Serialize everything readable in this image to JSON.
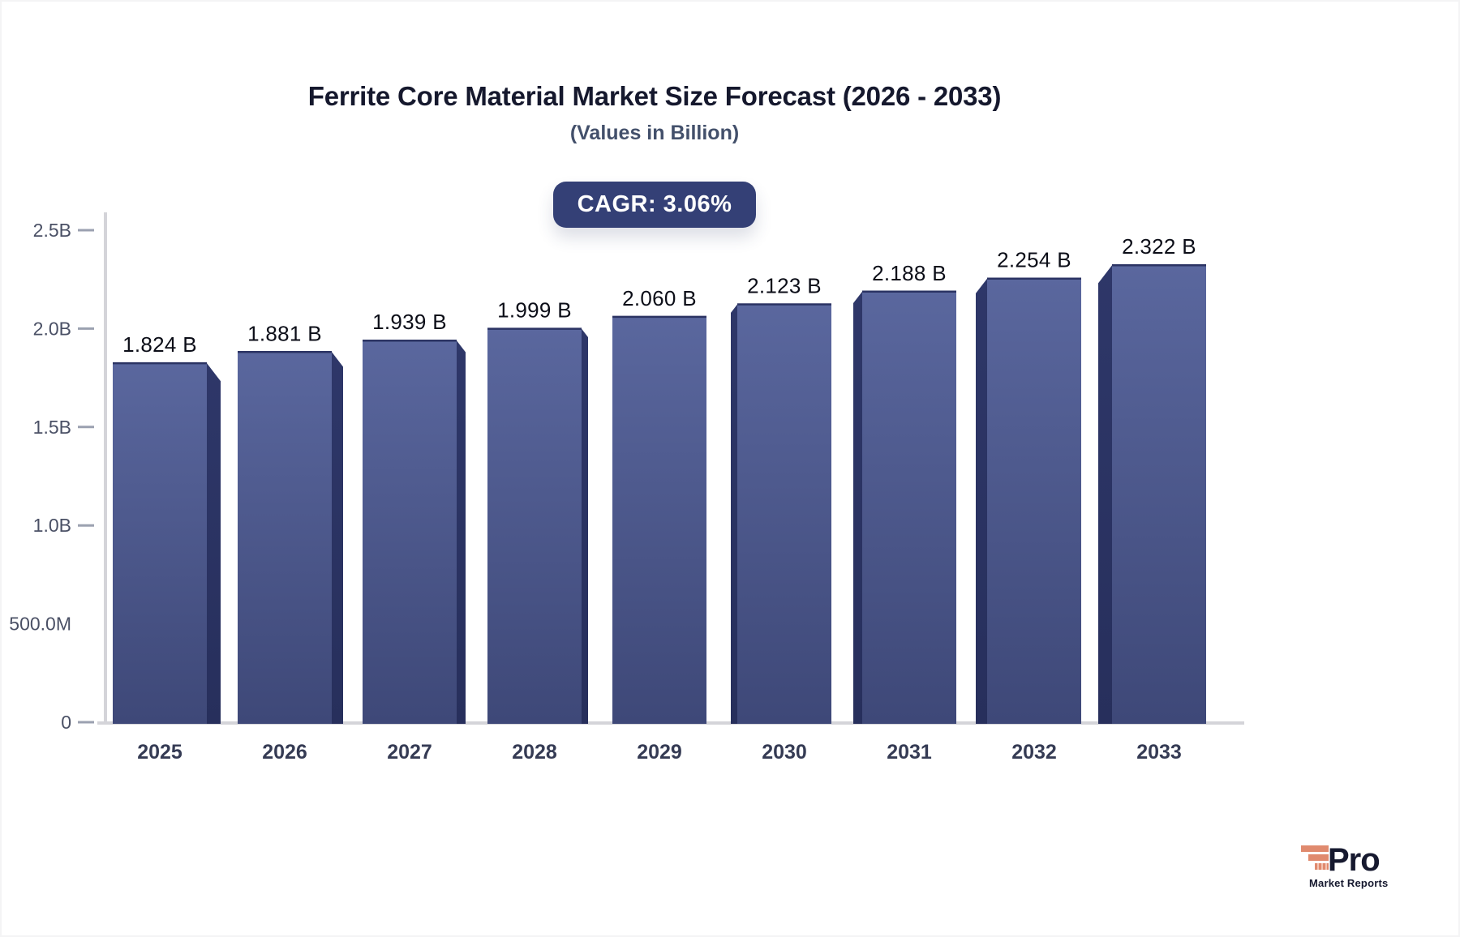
{
  "chart_data": {
    "type": "bar",
    "title": "Ferrite Core Material Market Size Forecast (2026 - 2033)",
    "subtitle": "(Values in Billion)",
    "annotation": "CAGR: 3.06%",
    "categories": [
      "2025",
      "2026",
      "2027",
      "2028",
      "2029",
      "2030",
      "2031",
      "2032",
      "2033"
    ],
    "values": [
      1.824,
      1.881,
      1.939,
      1.999,
      2.06,
      2.123,
      2.188,
      2.254,
      2.322
    ],
    "bar_labels": [
      "1.824 B",
      "1.881 B",
      "1.939 B",
      "1.999 B",
      "2.060 B",
      "2.123 B",
      "2.188 B",
      "2.254 B",
      "2.322 B"
    ],
    "xlabel": "",
    "ylabel": "",
    "ylim": [
      0,
      2.5
    ],
    "yticks": [
      {
        "label": "2.5B",
        "value": 2.5,
        "dash": true
      },
      {
        "label": "2.0B",
        "value": 2.0,
        "dash": true
      },
      {
        "label": "1.5B",
        "value": 1.5,
        "dash": true
      },
      {
        "label": "1.0B",
        "value": 1.0,
        "dash": true
      },
      {
        "label": "500.0M",
        "value": 0.5,
        "dash": false
      },
      {
        "label": "0",
        "value": 0,
        "dash": true
      }
    ],
    "grid": false,
    "legend": null,
    "bar_style": {
      "effect": "3d-center-perspective",
      "face_top_color": "#5a679e",
      "face_bottom_color": "#3e4878",
      "side_color": "#2a3263",
      "top_edge_color": "#2b3363"
    },
    "axis_colors": {
      "line": "#d4d4d9",
      "tick": "#9ba1b0"
    }
  },
  "badge": {
    "label": "CAGR: 3.06%"
  },
  "logo": {
    "brand": "Pro",
    "tagline": "Market Reports",
    "accent_color": "#e08a6e"
  }
}
